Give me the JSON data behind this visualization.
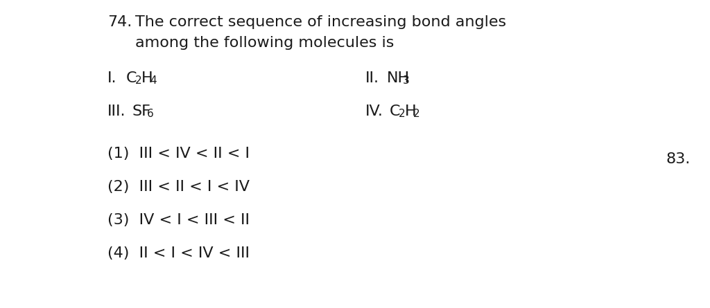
{
  "background_color": "#ffffff",
  "text_color": "#1a1a1a",
  "font_size_main": 16,
  "font_size_sub": 11,
  "font_size_options": 16,
  "q_num": "74.",
  "q_line1": "The correct sequence of increasing bond angles",
  "q_line2": "among the following molecules is",
  "side_num": "83.",
  "options": [
    "(1)  III < IV < II < I",
    "(2)  III < II < I < IV",
    "(3)  IV < I < III < II",
    "(4)  II < I < IV < III"
  ]
}
